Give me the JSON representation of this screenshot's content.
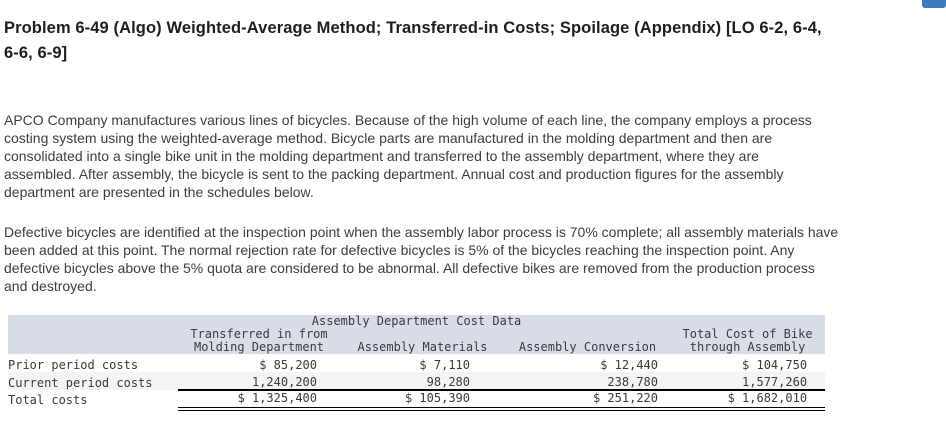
{
  "header": {
    "title": "Problem 6-49 (Algo) Weighted-Average Method; Transferred-in Costs; Spoilage (Appendix) [LO 6-2, 6-4,\n6-6, 6-9]"
  },
  "paragraphs": {
    "p1": "APCO Company manufactures various lines of bicycles. Because of the high volume of each line, the company employs a process\ncosting system using the weighted-average method. Bicycle parts are manufactured in the molding department and then are\nconsolidated into a single bike unit in the molding department and transferred to the assembly department, where they are\nassembled. After assembly, the bicycle is sent to the packing department. Annual cost and production figures for the assembly\ndepartment are presented in the schedules below.",
    "p2": "Defective bicycles are identified at the inspection point when the assembly labor process is 70% complete; all assembly materials have\nbeen added at this point. The normal rejection rate for defective bicycles is 5% of the bicycles reaching the inspection point. Any\ndefective bicycles above the 5% quota are considered to be abnormal. All defective bikes are removed from the production process\nand destroyed."
  },
  "chart_data": {
    "type": "table",
    "title": "Assembly Department Cost Data",
    "columns": [
      {
        "line1": "Transferred in from",
        "line2": "Molding Department"
      },
      {
        "line1": "",
        "line2": "Assembly Materials"
      },
      {
        "line1": "",
        "line2": "Assembly Conversion"
      },
      {
        "line1": "Total Cost of Bike",
        "line2": "through Assembly"
      }
    ],
    "rows": [
      {
        "label": "Prior period costs",
        "values": [
          "$ 85,200",
          "$ 7,110",
          "$ 12,440",
          "$ 104,750"
        ]
      },
      {
        "label": "Current period costs",
        "values": [
          "1,240,200",
          "98,280",
          "238,780",
          "1,577,260"
        ]
      },
      {
        "label": "Total costs",
        "values": [
          "$ 1,325,400",
          "$ 105,390",
          "$ 251,220",
          "$ 1,682,010"
        ]
      }
    ]
  },
  "colors": {
    "table_header_band": "#d9dde8",
    "row_stripe": "#f4f4f4",
    "accent_blue": "#3c7cbc",
    "title_text": "#1e1e1e",
    "body_text": "#3d3d3d"
  }
}
